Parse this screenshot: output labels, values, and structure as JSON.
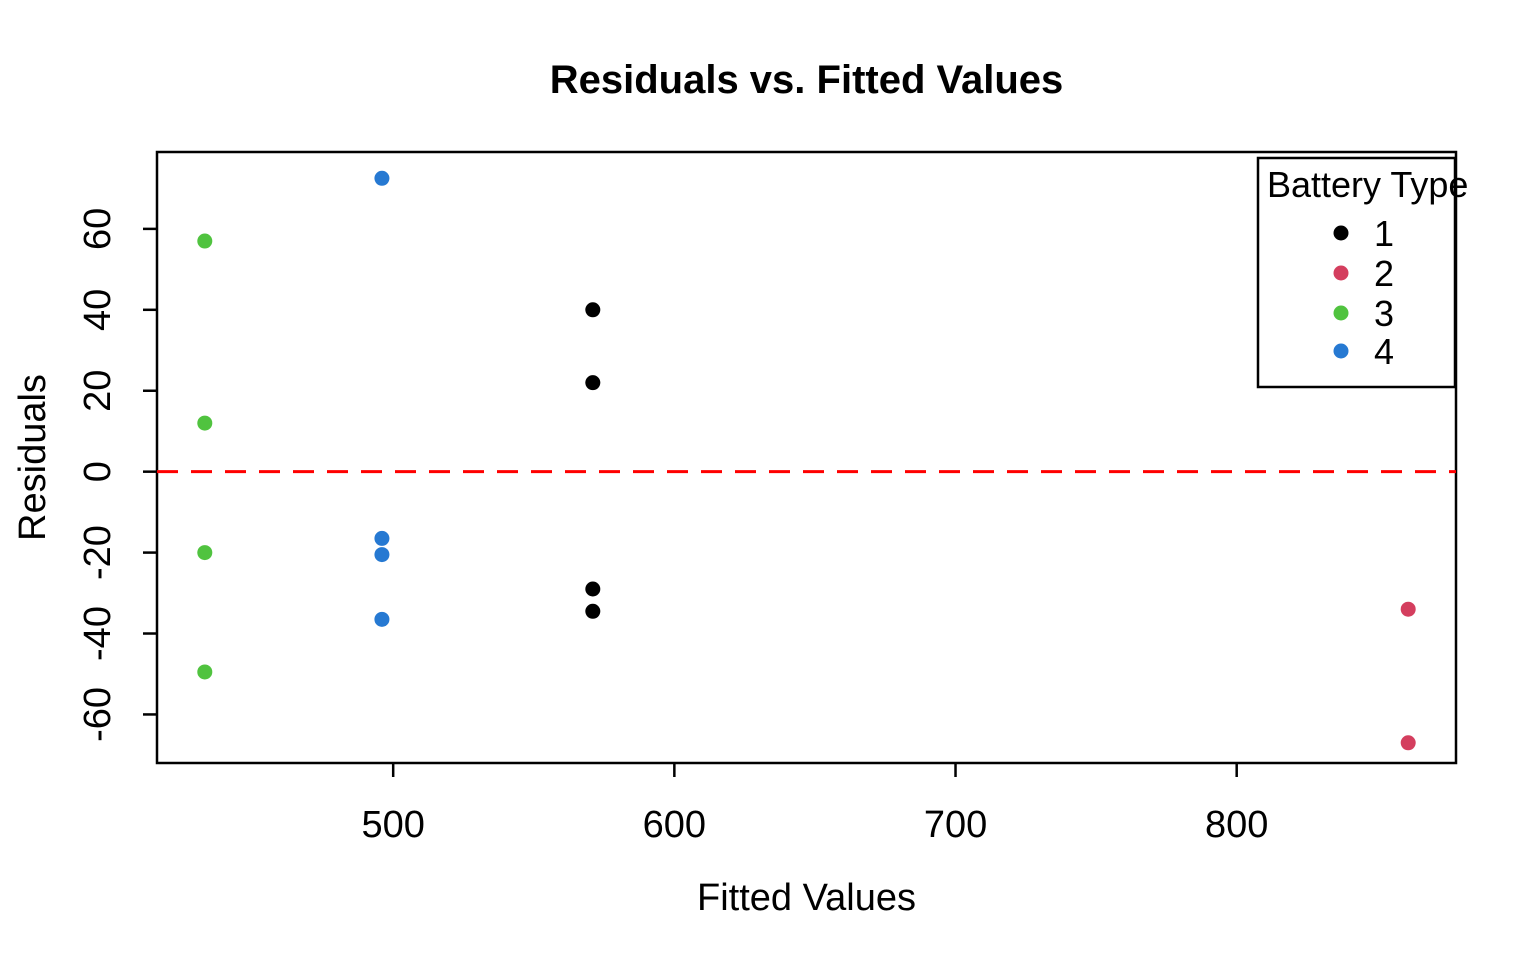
{
  "chart_data": {
    "type": "scatter",
    "title": "Residuals vs. Fitted Values",
    "xlabel": "Fitted Values",
    "ylabel": "Residuals",
    "xlim": [
      416,
      878
    ],
    "ylim": [
      -72,
      79
    ],
    "x_ticks": [
      500,
      600,
      700,
      800
    ],
    "y_ticks": [
      -60,
      -40,
      -20,
      0,
      20,
      40,
      60
    ],
    "grid": false,
    "reference_line": {
      "y": 0,
      "color": "#FF0000",
      "style": "dashed"
    },
    "legend": {
      "title": "Battery Type",
      "position": "top-right"
    },
    "series": [
      {
        "name": "1",
        "color": "#000000",
        "points": [
          {
            "x": 571,
            "y": 40
          },
          {
            "x": 571,
            "y": 22
          },
          {
            "x": 571,
            "y": -29
          },
          {
            "x": 571,
            "y": -34.5
          }
        ]
      },
      {
        "name": "2",
        "color": "#D43E5E",
        "points": [
          {
            "x": 861,
            "y": -34
          },
          {
            "x": 861,
            "y": -67
          }
        ]
      },
      {
        "name": "3",
        "color": "#50C33F",
        "points": [
          {
            "x": 433,
            "y": 57
          },
          {
            "x": 433,
            "y": 12
          },
          {
            "x": 433,
            "y": -20
          },
          {
            "x": 433,
            "y": -49.5
          }
        ]
      },
      {
        "name": "4",
        "color": "#2679D2",
        "points": [
          {
            "x": 496,
            "y": 72.5
          },
          {
            "x": 496,
            "y": -16.5
          },
          {
            "x": 496,
            "y": -20.5
          },
          {
            "x": 496,
            "y": -36.5
          }
        ]
      }
    ]
  }
}
